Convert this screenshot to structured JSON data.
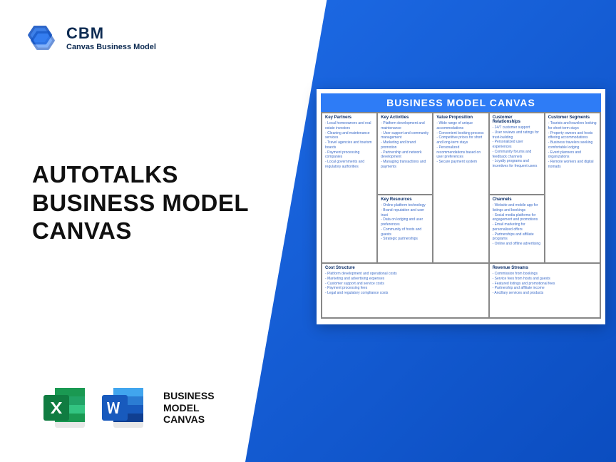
{
  "brand": {
    "name": "CBM",
    "tagline": "Canvas Business Model"
  },
  "title": {
    "line1": "AUTOTALKS",
    "line2": "BUSINESS MODEL",
    "line3": "CANVAS"
  },
  "fileLabel": {
    "line1": "BUSINESS",
    "line2": "MODEL",
    "line3": "CANVAS"
  },
  "canvas": {
    "header": "BUSINESS MODEL CANVAS",
    "colors": {
      "headerBg": "#2e7cf6",
      "cellTitle": "#0b2f6b",
      "cellText": "#3b6bc8"
    },
    "sections": {
      "keyPartners": {
        "title": "Key Partners",
        "items": [
          "Local homeowners and real estate investors",
          "Cleaning and maintenance services",
          "Travel agencies and tourism boards",
          "Payment processing companies",
          "Local governments and regulatory authorities"
        ]
      },
      "keyActivities": {
        "title": "Key Activities",
        "items": [
          "Platform development and maintenance",
          "User support and community management",
          "Marketing and brand promotion",
          "Partnership and network development",
          "Managing transactions and payments"
        ]
      },
      "keyResources": {
        "title": "Key Resources",
        "items": [
          "Online platform technology",
          "Brand reputation and user trust",
          "Data on lodging and user preferences",
          "Community of hosts and guests",
          "Strategic partnerships"
        ]
      },
      "valueProp": {
        "title": "Value Proposition",
        "items": [
          "Wide range of unique accommodations",
          "Convenient booking process",
          "Competitive prices for short and long-term stays",
          "Personalized recommendations based on user preferences",
          "Secure payment system"
        ]
      },
      "custRel": {
        "title": "Customer Relationships",
        "items": [
          "24/7 customer support",
          "User reviews and ratings for trust-building",
          "Personalized user experiences",
          "Community forums and feedback channels",
          "Loyalty programs and incentives for frequent users"
        ]
      },
      "channels": {
        "title": "Channels",
        "items": [
          "Website and mobile app for listings and bookings",
          "Social media platforms for engagement and promotions",
          "Email marketing for personalized offers",
          "Partnerships and affiliate programs",
          "Online and offline advertising"
        ]
      },
      "custSeg": {
        "title": "Customer Segments",
        "items": [
          "Tourists and travelers looking for short-term stays",
          "Property owners and hosts offering accommodations",
          "Business travelers seeking comfortable lodging",
          "Event planners and organizations",
          "Remote workers and digital nomads"
        ]
      },
      "cost": {
        "title": "Cost Structure",
        "items": [
          "Platform development and operational costs",
          "Marketing and advertising expenses",
          "Customer support and service costs",
          "Payment processing fees",
          "Legal and regulatory compliance costs"
        ]
      },
      "revenue": {
        "title": "Revenue Streams",
        "items": [
          "Commission from bookings",
          "Service fees from hosts and guests",
          "Featured listings and promotional fees",
          "Partnership and affiliate income",
          "Ancillary services and products"
        ]
      }
    }
  }
}
